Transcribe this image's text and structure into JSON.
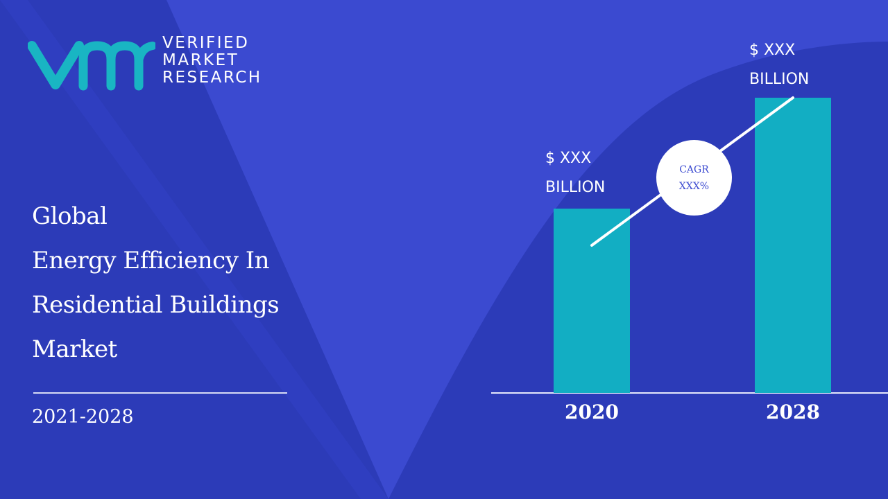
{
  "brand": {
    "line1": "VERIFIED",
    "line2": "MARKET",
    "line3": "RESEARCH",
    "mark_color": "#19b5c3"
  },
  "title": {
    "line1": "Global",
    "line2": "Energy Efficiency In",
    "line3": "Residential Buildings",
    "line4": "Market"
  },
  "period": "2021-2028",
  "colors": {
    "background": "#3b4ad0",
    "band": "#2c3bb8",
    "bar": "#12aec3",
    "text": "#ffffff"
  },
  "chart_data": {
    "type": "bar",
    "categories": [
      "2020",
      "2028"
    ],
    "values": [
      266,
      426
    ],
    "value_labels": [
      {
        "currency": "$  XXX",
        "unit": "BILLION"
      },
      {
        "currency": "$  XXX",
        "unit": "BILLION"
      }
    ],
    "ylim": [
      0,
      460
    ],
    "annotation": {
      "line1": "CAGR",
      "line2": "XXX%"
    },
    "trend_line": true,
    "grid": false,
    "legend": "none"
  }
}
